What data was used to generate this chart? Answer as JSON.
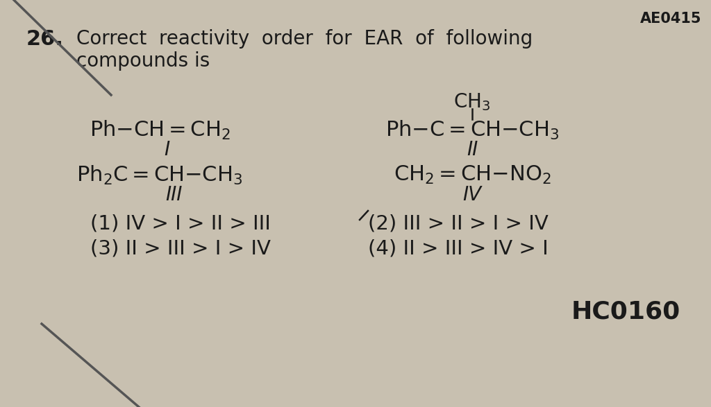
{
  "background_color": "#c8c0b0",
  "text_color": "#1a1a1a",
  "header_right": "AE0415",
  "question_num": "26.",
  "title_line1": "Correct  reactivity  order  for  EAR  of  following",
  "title_line2": "compounds is",
  "cmp1_formula": "Ph–CH=CH₂",
  "cmp1_label": "I",
  "cmp2_top": "CH₃",
  "cmp2_formula": "Ph–C=CH–CH₃",
  "cmp2_label": "II",
  "cmp3_formula": "Ph₂C=CH–CH₃",
  "cmp3_label": "III",
  "cmp4_formula": "CH₂=CH–NO₂",
  "cmp4_label": "IV",
  "opt1": "(1) IV > I > II > III",
  "opt2": "(2) III > II > I > IV",
  "opt3": "(3) II > III > I > IV",
  "opt4": "(4) II > III > IV > I",
  "footer": "HC0160",
  "fs_header": 15,
  "fs_title": 20,
  "fs_compound": 22,
  "fs_label": 20,
  "fs_option": 21,
  "fs_footer": 26
}
